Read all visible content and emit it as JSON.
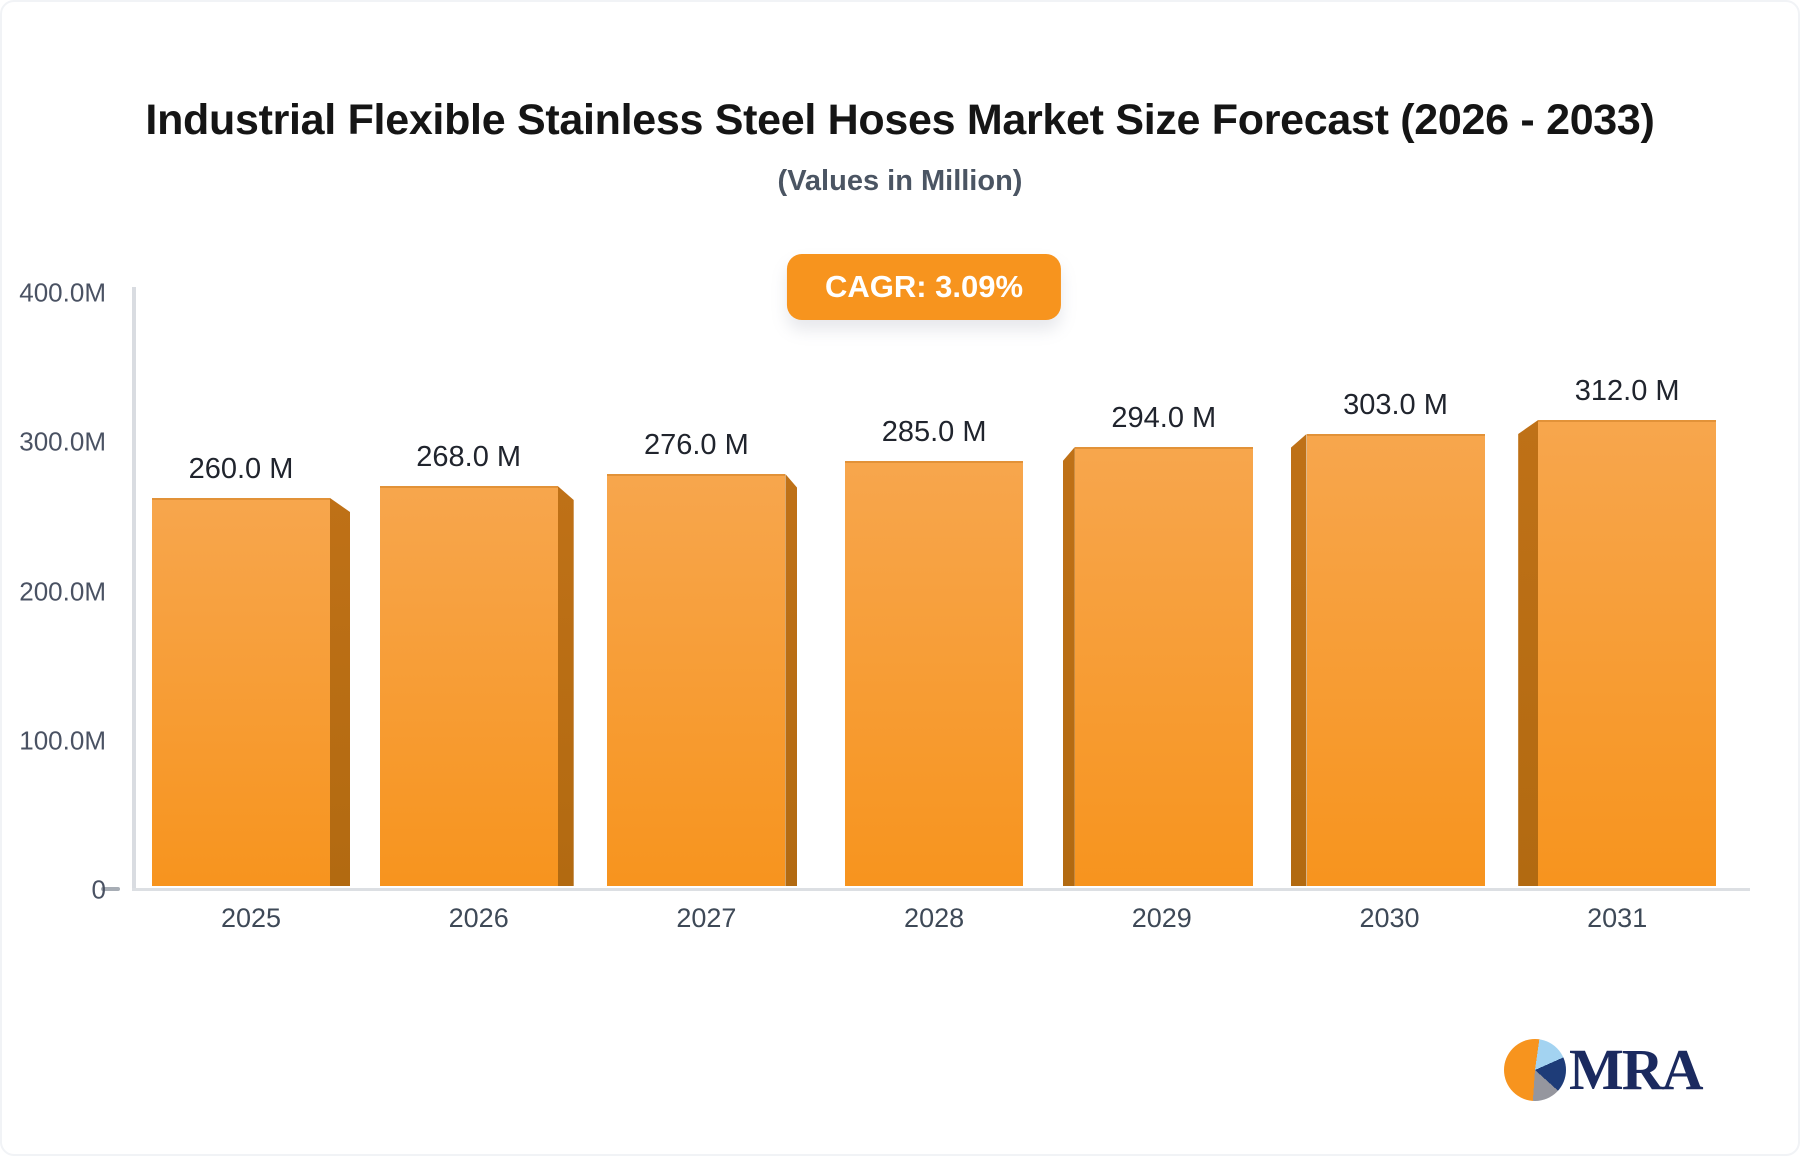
{
  "card": {
    "background": "#ffffff",
    "border_color": "#f1f3f6"
  },
  "header": {
    "title": "Industrial Flexible Stainless Steel Hoses Market Size Forecast (2026 - 2033)",
    "subtitle": "(Values in Million)"
  },
  "badge": {
    "label": "CAGR: 3.09%",
    "background": "#f7941e",
    "text_color": "#ffffff"
  },
  "chart_data": {
    "type": "bar",
    "title": "Industrial Flexible Stainless Steel Hoses Market Size Forecast (2026 - 2033)",
    "subtitle": "(Values in Million)",
    "unit": "Million",
    "categories": [
      "2025",
      "2026",
      "2027",
      "2028",
      "2029",
      "2030",
      "2031"
    ],
    "values": [
      260.0,
      268.0,
      276.0,
      285.0,
      294.0,
      303.0,
      312.0
    ],
    "value_labels": [
      "260.0 M",
      "268.0 M",
      "276.0 M",
      "285.0 M",
      "294.0 M",
      "303.0 M",
      "312.0 M"
    ],
    "ylim": [
      0,
      400
    ],
    "y_ticks": {
      "labels": [
        "400.0M",
        "300.0M",
        "200.0M",
        "100.0M",
        "0"
      ],
      "values": [
        400,
        300,
        200,
        100,
        0
      ]
    },
    "xlabel": "",
    "ylabel": "",
    "grid": false,
    "legend": false,
    "bar_style": {
      "top": "#f7a64d",
      "bottom": "#f7941e",
      "side": "#bf7117",
      "edge": "#e8963b"
    },
    "axis_color": "#d9dce1"
  },
  "logo": {
    "text": "MRA",
    "text_color": "#1b2a5f",
    "pie_colors": {
      "orange": "#f7941e",
      "light_blue": "#a3d3f1",
      "navy": "#1e3c78",
      "gray": "#95969e"
    }
  }
}
